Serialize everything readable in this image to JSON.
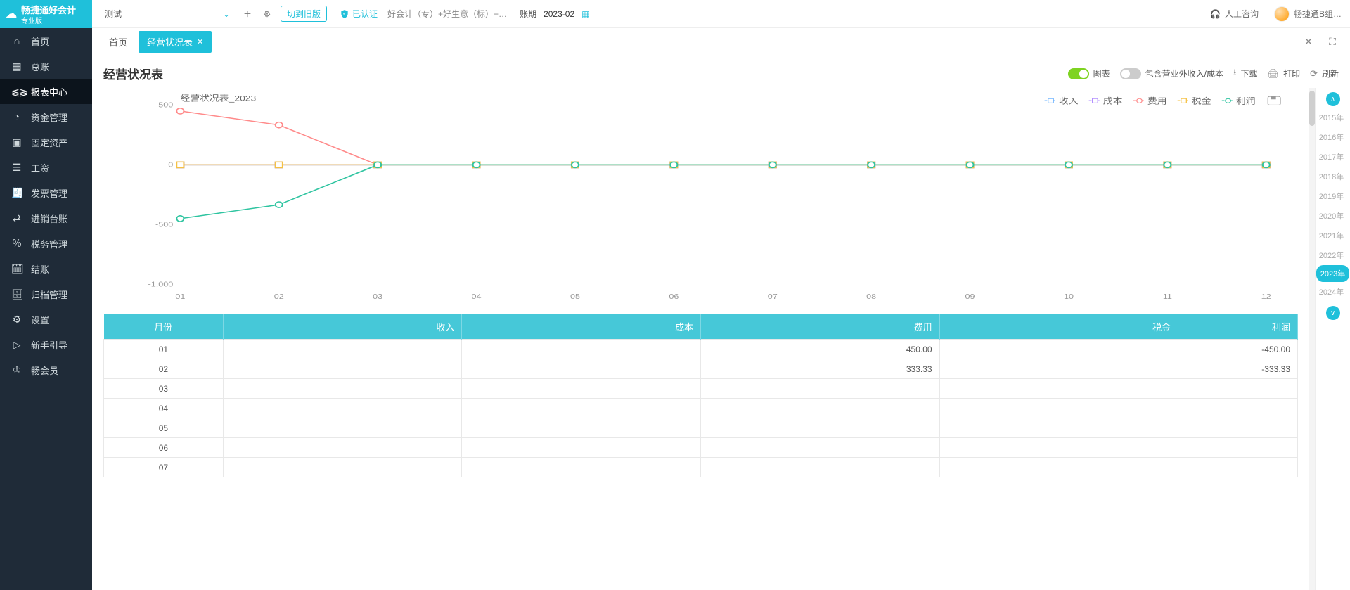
{
  "brand": {
    "name": "畅捷通好会计",
    "sub": "专业版"
  },
  "sidebar": {
    "items": [
      {
        "icon": "⌂",
        "label": "首页"
      },
      {
        "icon": "▦",
        "label": "总账"
      },
      {
        "icon": "⫹⫺",
        "label": "报表中心",
        "active": true
      },
      {
        "icon": "◔",
        "label": "资金管理"
      },
      {
        "icon": "▣",
        "label": "固定资产"
      },
      {
        "icon": "☰",
        "label": "工资"
      },
      {
        "icon": "🧾",
        "label": "发票管理"
      },
      {
        "icon": "⇄",
        "label": "进销台账"
      },
      {
        "icon": "％",
        "label": "税务管理"
      },
      {
        "icon": "🗓",
        "label": "结账"
      },
      {
        "icon": "🗄",
        "label": "归档管理"
      },
      {
        "icon": "⚙",
        "label": "设置"
      },
      {
        "icon": "▷",
        "label": "新手引导"
      },
      {
        "icon": "♔",
        "label": "畅会员"
      }
    ]
  },
  "topbar": {
    "company": "测试",
    "switch_old": "切到旧版",
    "certified": "已认证",
    "package": "好会计（专）+好生意（标）+…",
    "period_label": "账期",
    "period_value": "2023-02",
    "support": "人工咨询",
    "user": "畅捷通B组…"
  },
  "tabs": {
    "items": [
      {
        "label": "首页",
        "active": false,
        "closable": false
      },
      {
        "label": "经营状况表",
        "active": true,
        "closable": true
      }
    ]
  },
  "page": {
    "title": "经营状况表",
    "toggle_chart": {
      "label": "图表",
      "on": true
    },
    "toggle_extra": {
      "label": "包含营业外收入/成本",
      "on": false
    },
    "download": "下载",
    "print": "打印",
    "refresh": "刷新"
  },
  "chart": {
    "title": "经营状况表_2023",
    "type": "line",
    "background": "#ffffff",
    "categories": [
      "01",
      "02",
      "03",
      "04",
      "05",
      "06",
      "07",
      "08",
      "09",
      "10",
      "11",
      "12"
    ],
    "ylim": [
      -1000,
      500
    ],
    "ytick_step": 500,
    "yticks": [
      -1000,
      -500,
      0,
      500
    ],
    "grid_color": "#f0f0f0",
    "axis_color": "#dddddd",
    "label_color": "#999999",
    "label_fontsize": 10,
    "title_fontsize": 11,
    "marker_size": 4,
    "line_width": 1.5,
    "series": [
      {
        "name": "收入",
        "color": "#6fb4ff",
        "marker": "square",
        "values": [
          0,
          0,
          0,
          0,
          0,
          0,
          0,
          0,
          0,
          0,
          0,
          0
        ]
      },
      {
        "name": "成本",
        "color": "#b08cff",
        "marker": "square",
        "values": [
          0,
          0,
          0,
          0,
          0,
          0,
          0,
          0,
          0,
          0,
          0,
          0
        ]
      },
      {
        "name": "费用",
        "color": "#ff8a8a",
        "marker": "circle",
        "values": [
          450,
          333.33,
          0,
          0,
          0,
          0,
          0,
          0,
          0,
          0,
          0,
          0
        ]
      },
      {
        "name": "税金",
        "color": "#f5c143",
        "marker": "square",
        "values": [
          0,
          0,
          0,
          0,
          0,
          0,
          0,
          0,
          0,
          0,
          0,
          0
        ]
      },
      {
        "name": "利润",
        "color": "#2ec4a0",
        "marker": "circle",
        "values": [
          -450,
          -333.33,
          0,
          0,
          0,
          0,
          0,
          0,
          0,
          0,
          0,
          0
        ]
      }
    ],
    "legend_save_icon": true
  },
  "table": {
    "columns": [
      {
        "key": "month",
        "label": "月份",
        "width": "10%",
        "align": "center"
      },
      {
        "key": "rev",
        "label": "收入",
        "width": "20%",
        "align": "right"
      },
      {
        "key": "cost",
        "label": "成本",
        "width": "20%",
        "align": "right"
      },
      {
        "key": "exp",
        "label": "费用",
        "width": "20%",
        "align": "right"
      },
      {
        "key": "tax",
        "label": "税金",
        "width": "20%",
        "align": "right"
      },
      {
        "key": "profit",
        "label": "利润",
        "width": "10%",
        "align": "right"
      }
    ],
    "rows": [
      {
        "month": "01",
        "rev": "",
        "cost": "",
        "exp": "450.00",
        "tax": "",
        "profit": "-450.00"
      },
      {
        "month": "02",
        "rev": "",
        "cost": "",
        "exp": "333.33",
        "tax": "",
        "profit": "-333.33"
      },
      {
        "month": "03",
        "rev": "",
        "cost": "",
        "exp": "",
        "tax": "",
        "profit": ""
      },
      {
        "month": "04",
        "rev": "",
        "cost": "",
        "exp": "",
        "tax": "",
        "profit": ""
      },
      {
        "month": "05",
        "rev": "",
        "cost": "",
        "exp": "",
        "tax": "",
        "profit": ""
      },
      {
        "month": "06",
        "rev": "",
        "cost": "",
        "exp": "",
        "tax": "",
        "profit": ""
      },
      {
        "month": "07",
        "rev": "",
        "cost": "",
        "exp": "",
        "tax": "",
        "profit": ""
      }
    ]
  },
  "year_rail": {
    "years": [
      "2015年",
      "2016年",
      "2017年",
      "2018年",
      "2019年",
      "2020年",
      "2021年",
      "2022年",
      "2023年",
      "2024年"
    ],
    "active": "2023年"
  }
}
